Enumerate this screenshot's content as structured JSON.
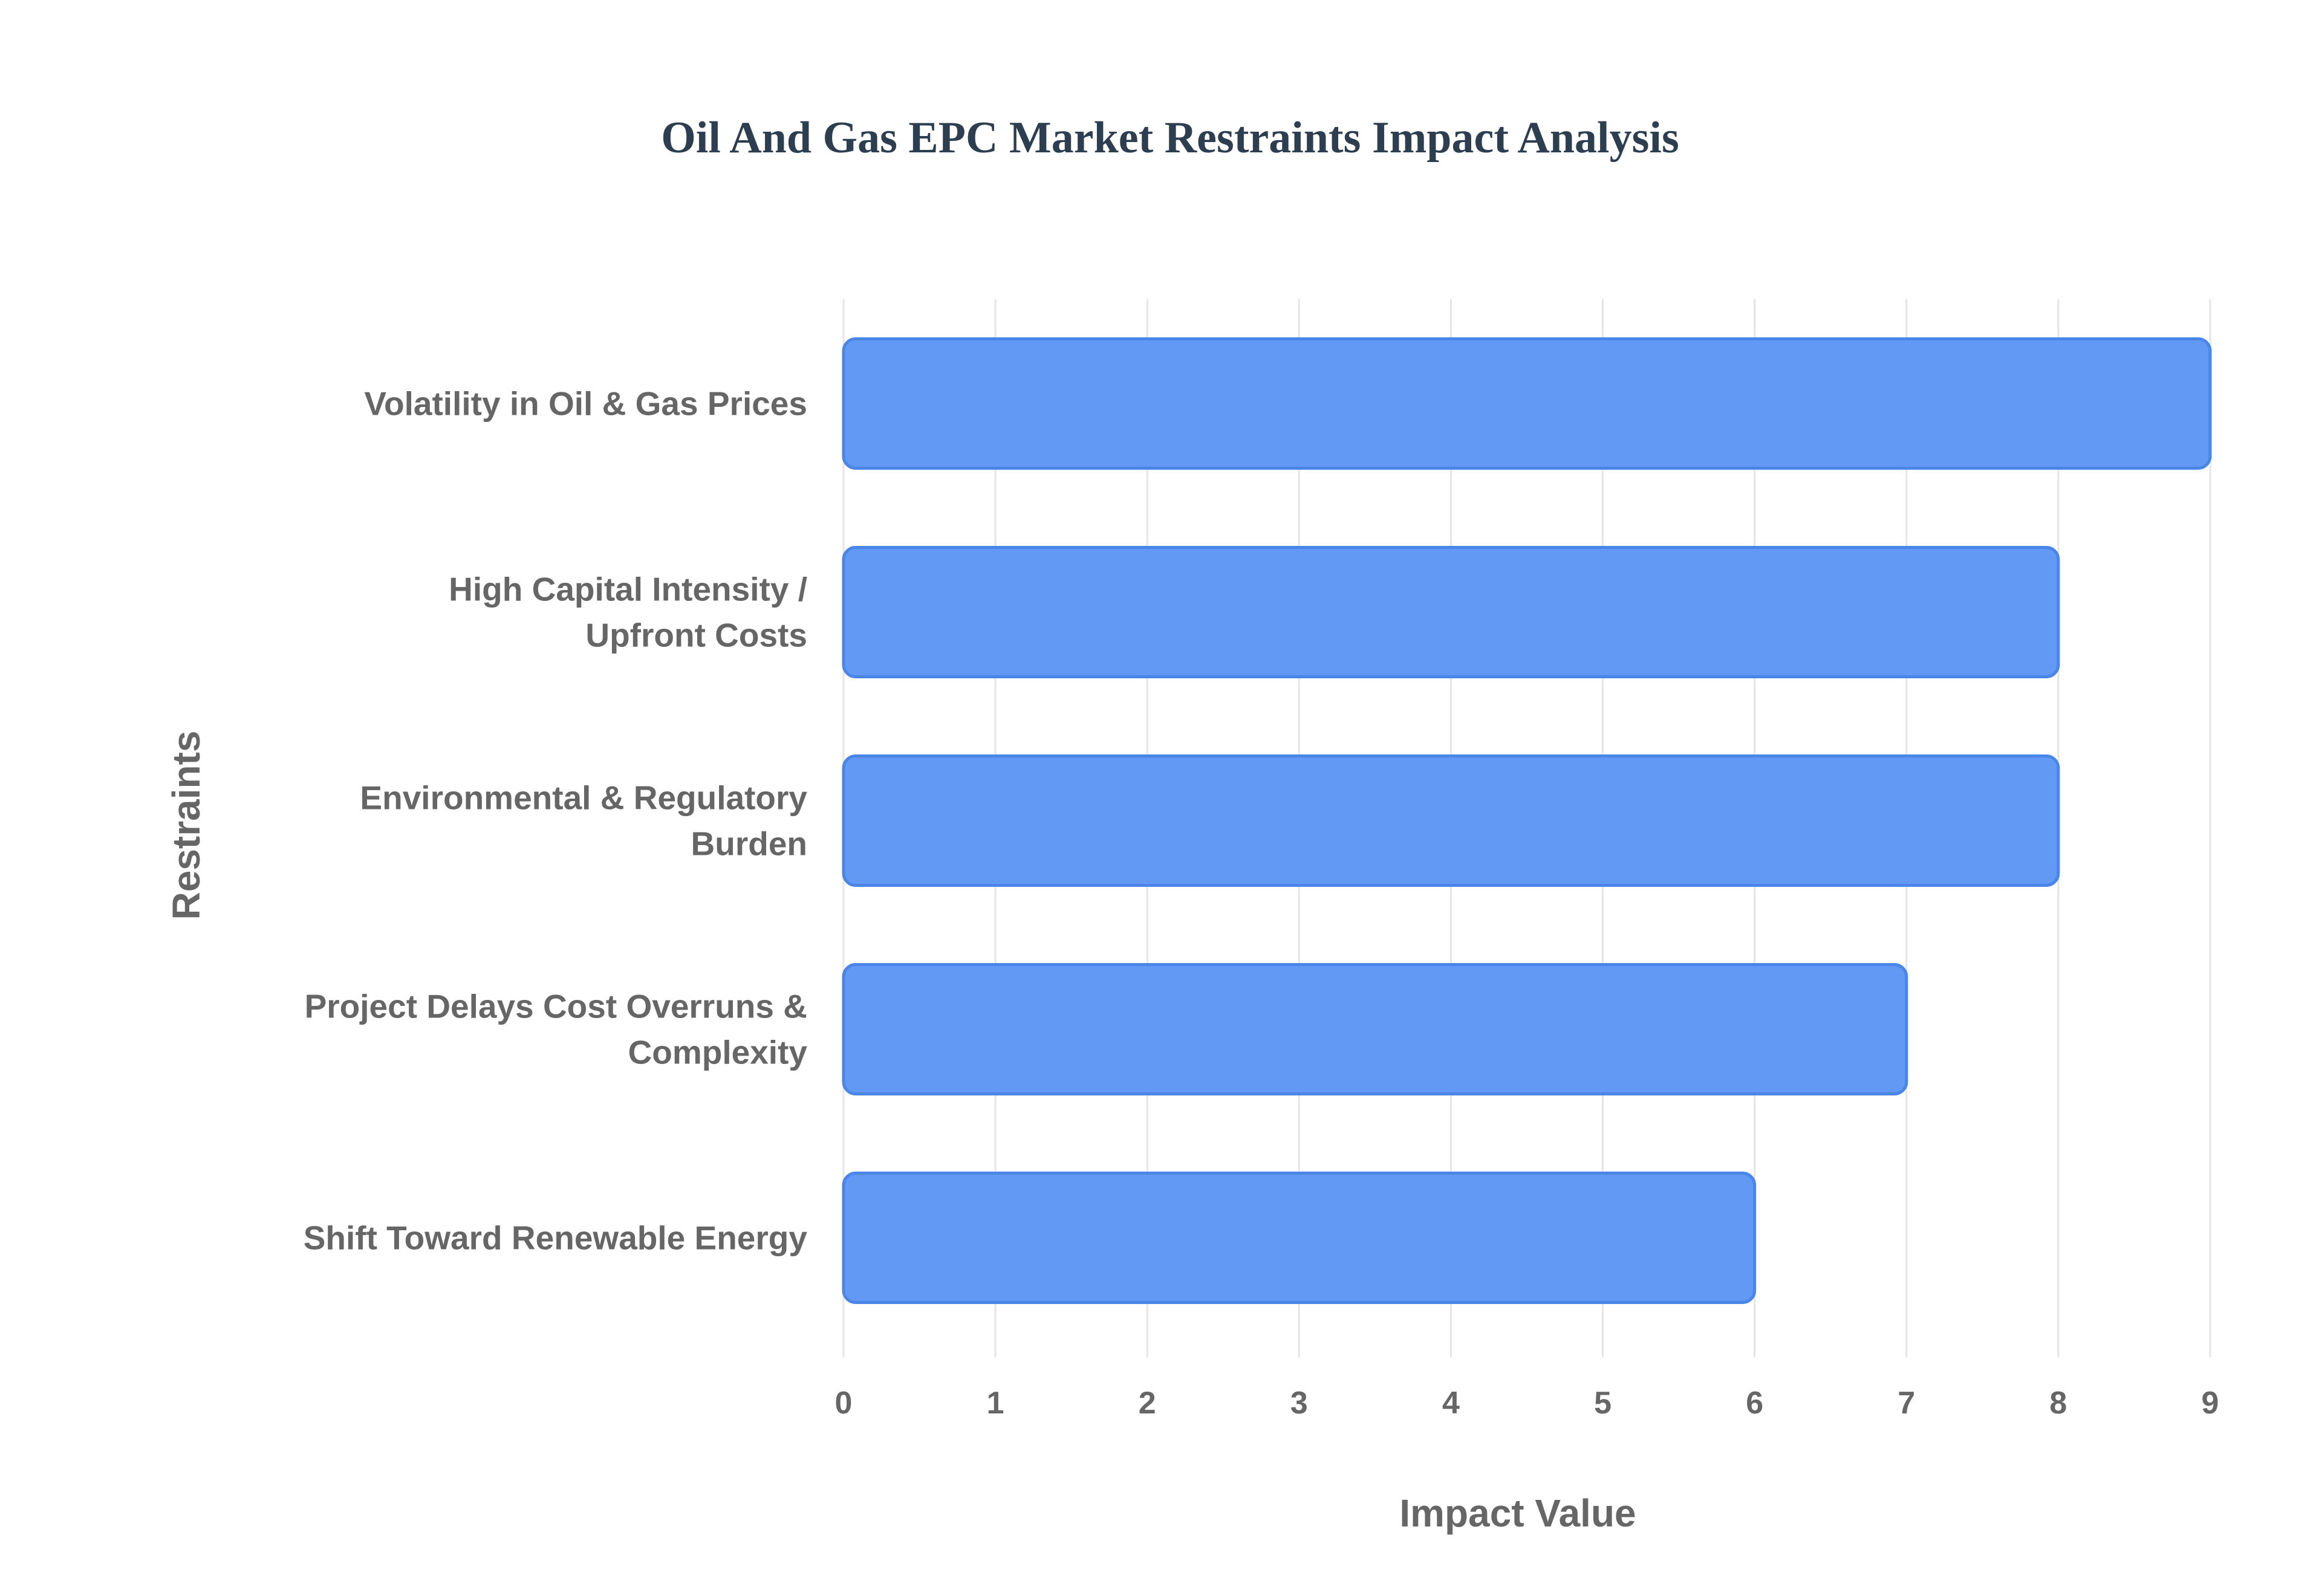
{
  "chart_data": {
    "type": "bar",
    "orientation": "horizontal",
    "title": "Oil And Gas EPC Market Restraints Impact Analysis",
    "xlabel": "Impact Value",
    "ylabel": "Restraints",
    "categories": [
      [
        "Volatility in Oil & Gas Prices"
      ],
      [
        "High Capital Intensity /",
        "Upfront Costs"
      ],
      [
        "Environmental & Regulatory",
        "Burden"
      ],
      [
        "Project Delays Cost Overruns &",
        "Complexity"
      ],
      [
        "Shift Toward Renewable Energy"
      ]
    ],
    "values": [
      9,
      8,
      8,
      7,
      6
    ],
    "xlim": [
      0,
      9
    ],
    "xticks": [
      0,
      1,
      2,
      3,
      4,
      5,
      6,
      7,
      8,
      9
    ],
    "grid": true,
    "legend": "none",
    "colors": {
      "bar_fill": "#6199f5",
      "bar_stroke": "#4a86e8",
      "title": "#2c3e50",
      "label": "#666666",
      "grid": "#e5e5e5"
    }
  }
}
